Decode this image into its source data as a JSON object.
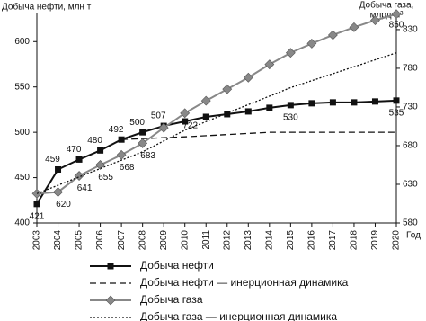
{
  "chart_data": {
    "type": "line",
    "y_label": "Добыча нефти, млн т",
    "y2_label_lines": [
      "Добыча газа,",
      "млрд м³"
    ],
    "x_label": "Год",
    "xlim": [
      2003,
      2020
    ],
    "xticks": [
      2003,
      2004,
      2005,
      2006,
      2007,
      2008,
      2009,
      2010,
      2011,
      2012,
      2013,
      2014,
      2015,
      2016,
      2017,
      2018,
      2019,
      2020
    ],
    "ylim": [
      400,
      632
    ],
    "yticks": [
      400,
      450,
      500,
      550,
      600
    ],
    "y2lim": [
      580,
      852
    ],
    "y2ticks": [
      580,
      630,
      680,
      730,
      780,
      830
    ],
    "series": [
      {
        "name": "Добыча нефти",
        "color": "#111111",
        "marker": "square",
        "dash": "solid",
        "x": [
          2003,
          2004,
          2005,
          2006,
          2007,
          2008,
          2009,
          2010,
          2011,
          2012,
          2013,
          2014,
          2015,
          2016,
          2017,
          2018,
          2019,
          2020
        ],
        "values": [
          421,
          459,
          470,
          480,
          492,
          500,
          507,
          512,
          517,
          520,
          523,
          527,
          530,
          532,
          533,
          533,
          534,
          535
        ],
        "value_labels": [
          "421",
          "459",
          "470",
          "480",
          "492",
          "500",
          "507",
          null,
          null,
          null,
          null,
          null,
          "530",
          null,
          null,
          null,
          null,
          "535"
        ]
      },
      {
        "name": "Добыча нефти — инерционная динамика",
        "color": "#111111",
        "marker": "none",
        "dash": "dashed",
        "x": [
          2007,
          2010,
          2014,
          2020
        ],
        "values": [
          492,
          495,
          500,
          500
        ]
      },
      {
        "name": "Добыча газа",
        "color": "#888888",
        "marker": "diamond",
        "dash": "solid",
        "axis": "y2",
        "x": [
          2003,
          2004,
          2005,
          2006,
          2007,
          2008,
          2009,
          2010,
          2011,
          2012,
          2013,
          2014,
          2015,
          2016,
          2017,
          2018,
          2019,
          2020
        ],
        "values": [
          618,
          620,
          641,
          655,
          668,
          683,
          703,
          722,
          738,
          753,
          768,
          785,
          800,
          812,
          823,
          833,
          842,
          850
        ],
        "value_labels": [
          null,
          "620",
          "641",
          "655",
          "668",
          "683",
          null,
          "722",
          null,
          null,
          null,
          null,
          null,
          null,
          null,
          null,
          null,
          "850"
        ]
      },
      {
        "name": "Добыча газа — инерционная динамика",
        "color": "#111111",
        "marker": "none",
        "dash": "dotted",
        "axis": "y2",
        "x": [
          2003,
          2008,
          2010,
          2015,
          2020
        ],
        "values": [
          618,
          672,
          700,
          755,
          800
        ]
      }
    ]
  }
}
